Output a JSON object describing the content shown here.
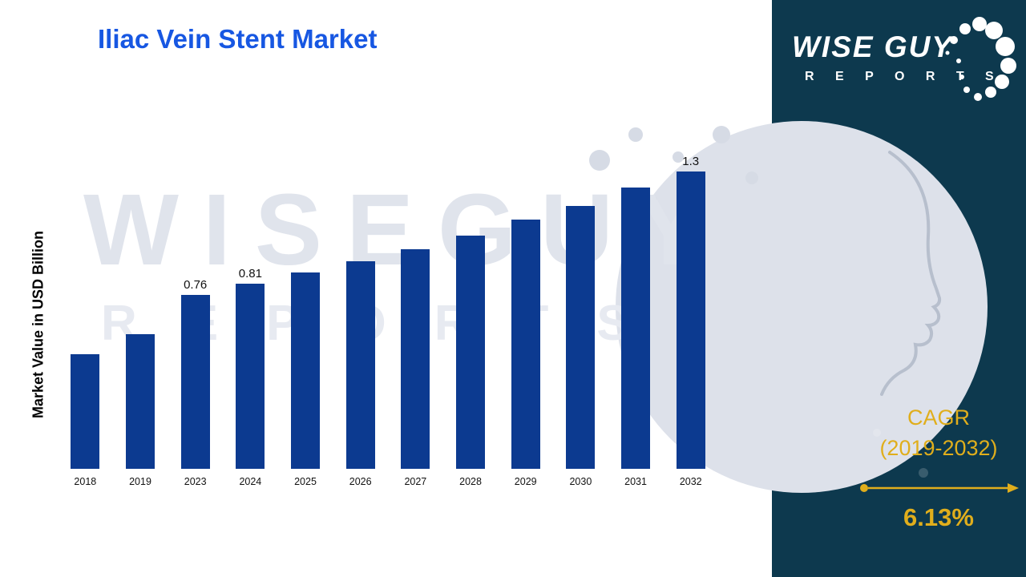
{
  "title": "Iliac Vein Stent Market",
  "watermark": {
    "line1": "WISEGUY",
    "line2": "REPORTS"
  },
  "brand": {
    "name_line1": "WISE GUY",
    "name_line2": "R E P O R T S",
    "cagr_label": "CAGR",
    "cagr_range": "(2019-2032)",
    "cagr_value": "6.13%"
  },
  "colors": {
    "bar": "#0c3a90",
    "title": "#1757e2",
    "panel": "#0d394e",
    "accent": "#e0ae1c",
    "watermark": "#e0e4ec"
  },
  "chart_data": {
    "type": "bar",
    "title": "Iliac Vein Stent Market",
    "xlabel": "",
    "ylabel": "Market Value in USD Billion",
    "categories": [
      "2018",
      "2019",
      "2023",
      "2024",
      "2025",
      "2026",
      "2027",
      "2028",
      "2029",
      "2030",
      "2031",
      "2032"
    ],
    "values": [
      0.5,
      0.59,
      0.76,
      0.81,
      0.86,
      0.91,
      0.96,
      1.02,
      1.09,
      1.15,
      1.23,
      1.3
    ],
    "data_labels": [
      "",
      "",
      "0.76",
      "0.81",
      "",
      "",
      "",
      "",
      "",
      "",
      "",
      "1.3"
    ],
    "ylim": [
      0,
      1.4
    ],
    "grid": false,
    "legend": false
  }
}
